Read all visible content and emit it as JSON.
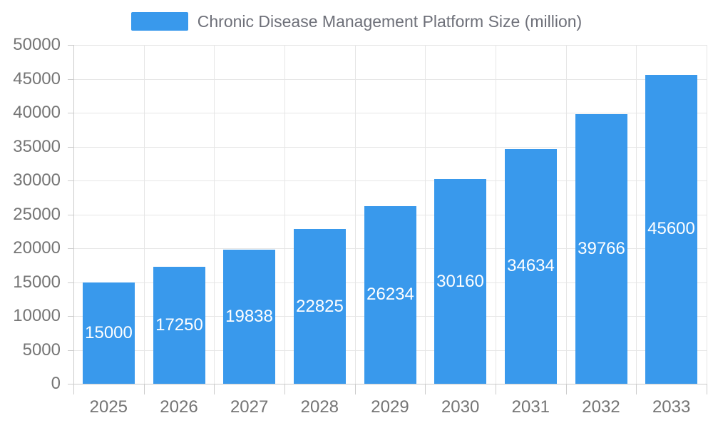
{
  "chart_data": {
    "type": "bar",
    "title": "Chronic Disease Management Platform Size (million)",
    "legend_entries": [
      "Chronic Disease Management Platform Size (million)"
    ],
    "categories": [
      "2025",
      "2026",
      "2027",
      "2028",
      "2029",
      "2030",
      "2031",
      "2032",
      "2033"
    ],
    "values": [
      15000,
      17250,
      19838,
      22825,
      26234,
      30160,
      34634,
      39766,
      45600
    ],
    "xlabel": "",
    "ylabel": "",
    "ylim": [
      0,
      50000
    ],
    "ytick_step": 5000,
    "ytick_labels": [
      "0",
      "5000",
      "10000",
      "15000",
      "20000",
      "25000",
      "30000",
      "35000",
      "40000",
      "45000",
      "50000"
    ],
    "grid": true,
    "legend_position": "top-center",
    "value_label_position": "inside-center",
    "colors": {
      "bar": "#3999ec",
      "value_label": "#ffffff",
      "axis_text": "#757575",
      "grid_line": "#e6e6e6",
      "axis_line": "#cccccc",
      "legend_text": "#6e7079"
    }
  }
}
